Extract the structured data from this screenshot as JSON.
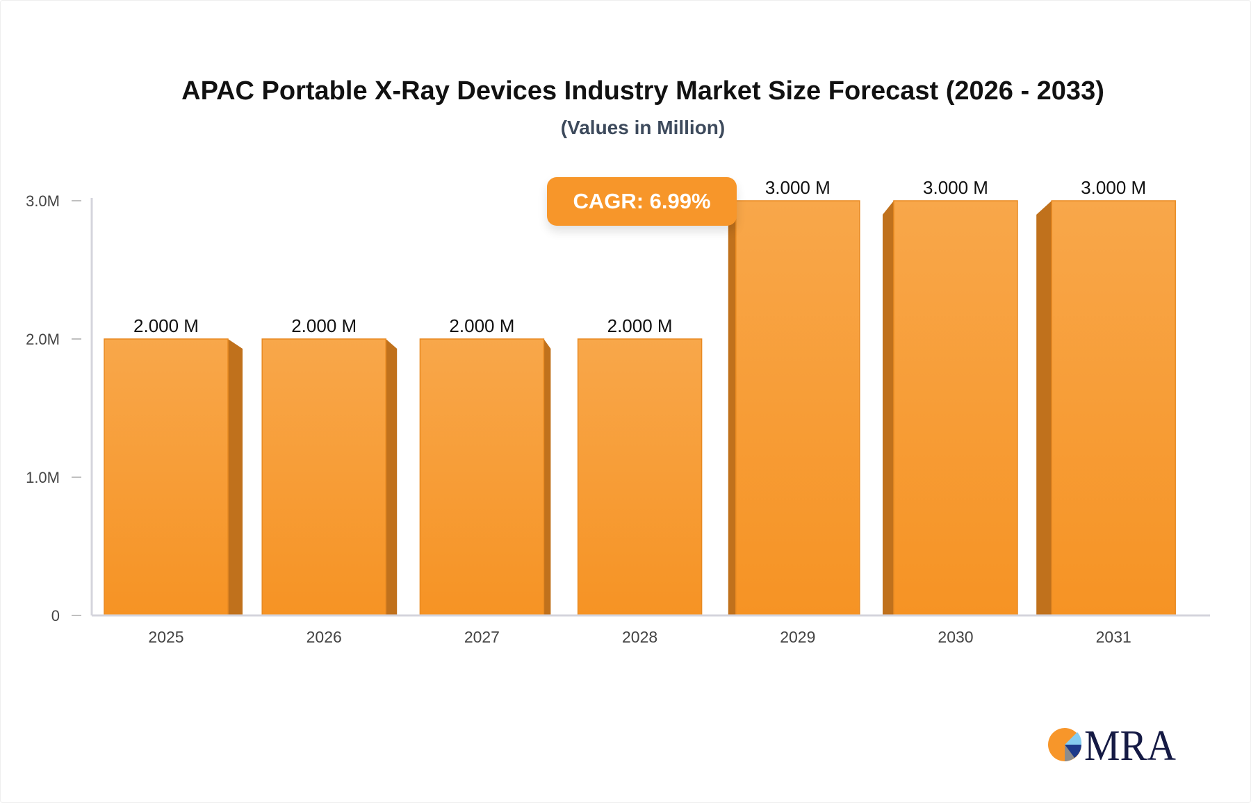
{
  "chart_data": {
    "type": "bar",
    "title": "APAC Portable X-Ray Devices Industry Market Size Forecast (2026 - 2033)",
    "subtitle": "(Values in Million)",
    "categories": [
      "2025",
      "2026",
      "2027",
      "2028",
      "2029",
      "2030",
      "2031"
    ],
    "values": [
      2.0,
      2.0,
      2.0,
      2.0,
      3.0,
      3.0,
      3.0
    ],
    "data_labels": [
      "2.000 M",
      "2.000 M",
      "2.000 M",
      "2.000 M",
      "3.000 M",
      "3.000 M",
      "3.000 M"
    ],
    "yticks": [
      {
        "value": 0,
        "label": "0"
      },
      {
        "value": 1,
        "label": "1.0M"
      },
      {
        "value": 2,
        "label": "2.0M"
      },
      {
        "value": 3,
        "label": "3.0M"
      }
    ],
    "ylim": [
      0,
      3
    ],
    "grid": false,
    "bar_color": "#f7a040",
    "annotation": "CAGR: 6.99%"
  },
  "logo": {
    "text": "MRA"
  }
}
